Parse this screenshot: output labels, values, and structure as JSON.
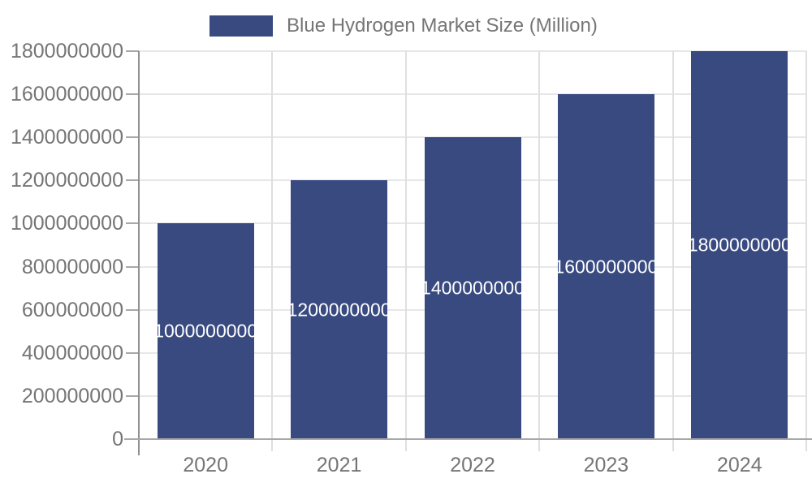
{
  "legend": {
    "label": "Blue Hydrogen Market Size (Million)"
  },
  "colors": {
    "bar": "#394A81",
    "bar_label_text": "#FFFFFF",
    "tick_text": "#757575",
    "legend_text": "#757575",
    "grid_horizontal": "#E7E7E7",
    "grid_vertical": "#DFDFDF",
    "y_axis_line": "#909090",
    "x_axis_line": "#A8A8A8",
    "background": "#FFFFFF"
  },
  "chart_data": {
    "type": "bar",
    "title": "Blue Hydrogen Market Size (Million)",
    "legend_position": "top",
    "grid": true,
    "categories": [
      "2020",
      "2021",
      "2022",
      "2023",
      "2024"
    ],
    "values": [
      1000000000,
      1200000000,
      1400000000,
      1600000000,
      1800000000
    ],
    "bar_value_labels": [
      "1000000000",
      "1200000000",
      "1400000000",
      "1600000000",
      "1800000000"
    ],
    "xlabel": "",
    "ylabel": "",
    "ylim": [
      0,
      1800000000
    ],
    "y_tick_step": 200000000,
    "y_tick_labels": [
      "0",
      "200000000",
      "400000000",
      "600000000",
      "800000000",
      "1000000000",
      "1200000000",
      "1400000000",
      "1600000000",
      "1800000000"
    ]
  }
}
